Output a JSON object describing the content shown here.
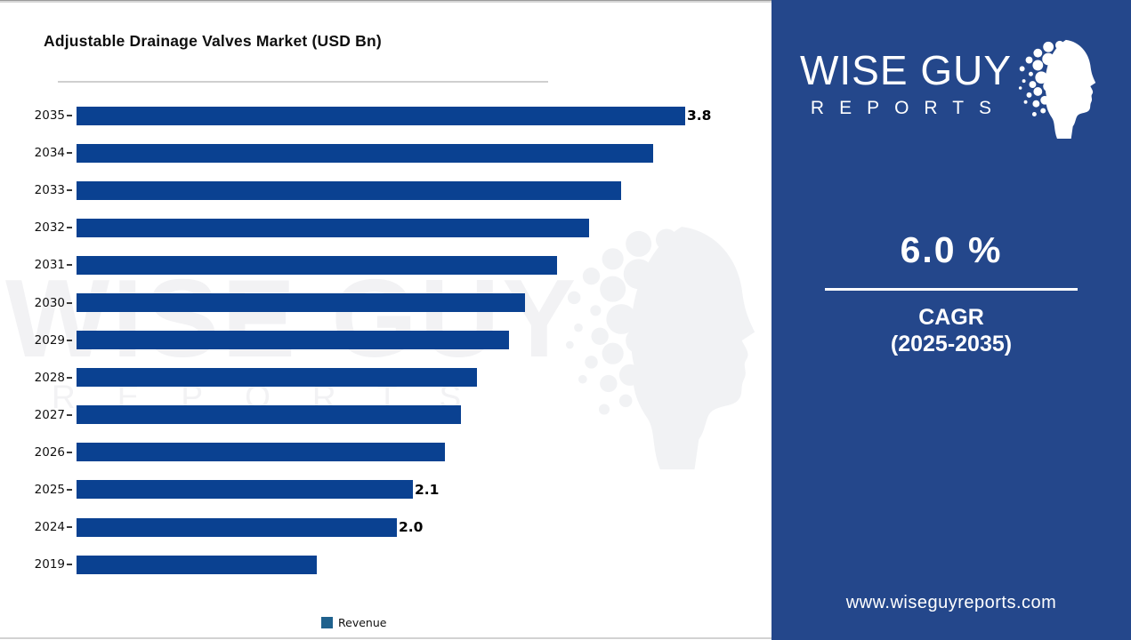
{
  "chart_data": {
    "type": "bar",
    "orientation": "horizontal",
    "title": "Adjustable Drainage Valves Market (USD Bn)",
    "unit": "USD Bn",
    "categories": [
      "2035",
      "2034",
      "2033",
      "2032",
      "2031",
      "2030",
      "2029",
      "2028",
      "2027",
      "2026",
      "2025",
      "2024",
      "2019"
    ],
    "values": [
      3.8,
      3.6,
      3.4,
      3.2,
      3.0,
      2.8,
      2.7,
      2.5,
      2.4,
      2.3,
      2.1,
      2.0,
      1.5
    ],
    "bar_labels": [
      "3.8",
      "",
      "",
      "",
      "",
      "",
      "",
      "",
      "",
      "",
      "2.1",
      "2.0",
      ""
    ],
    "series_name": "Revenue",
    "xlim": [
      0,
      4.2
    ],
    "grid": false,
    "legend_position": "bottom-center",
    "bar_color": "#0a4191",
    "legend_color": "#1f618d"
  },
  "watermark": {
    "line1": "WISE GUY",
    "line2": "REPORTS"
  },
  "panel": {
    "background": "#24478b",
    "logo_line1": "WISE GUY",
    "logo_line2": "REPORTS",
    "cagr_value": "6.0 %",
    "cagr_label_line1": "CAGR",
    "cagr_label_line2": "(2025-2035)",
    "website": "www.wiseguyreports.com"
  }
}
